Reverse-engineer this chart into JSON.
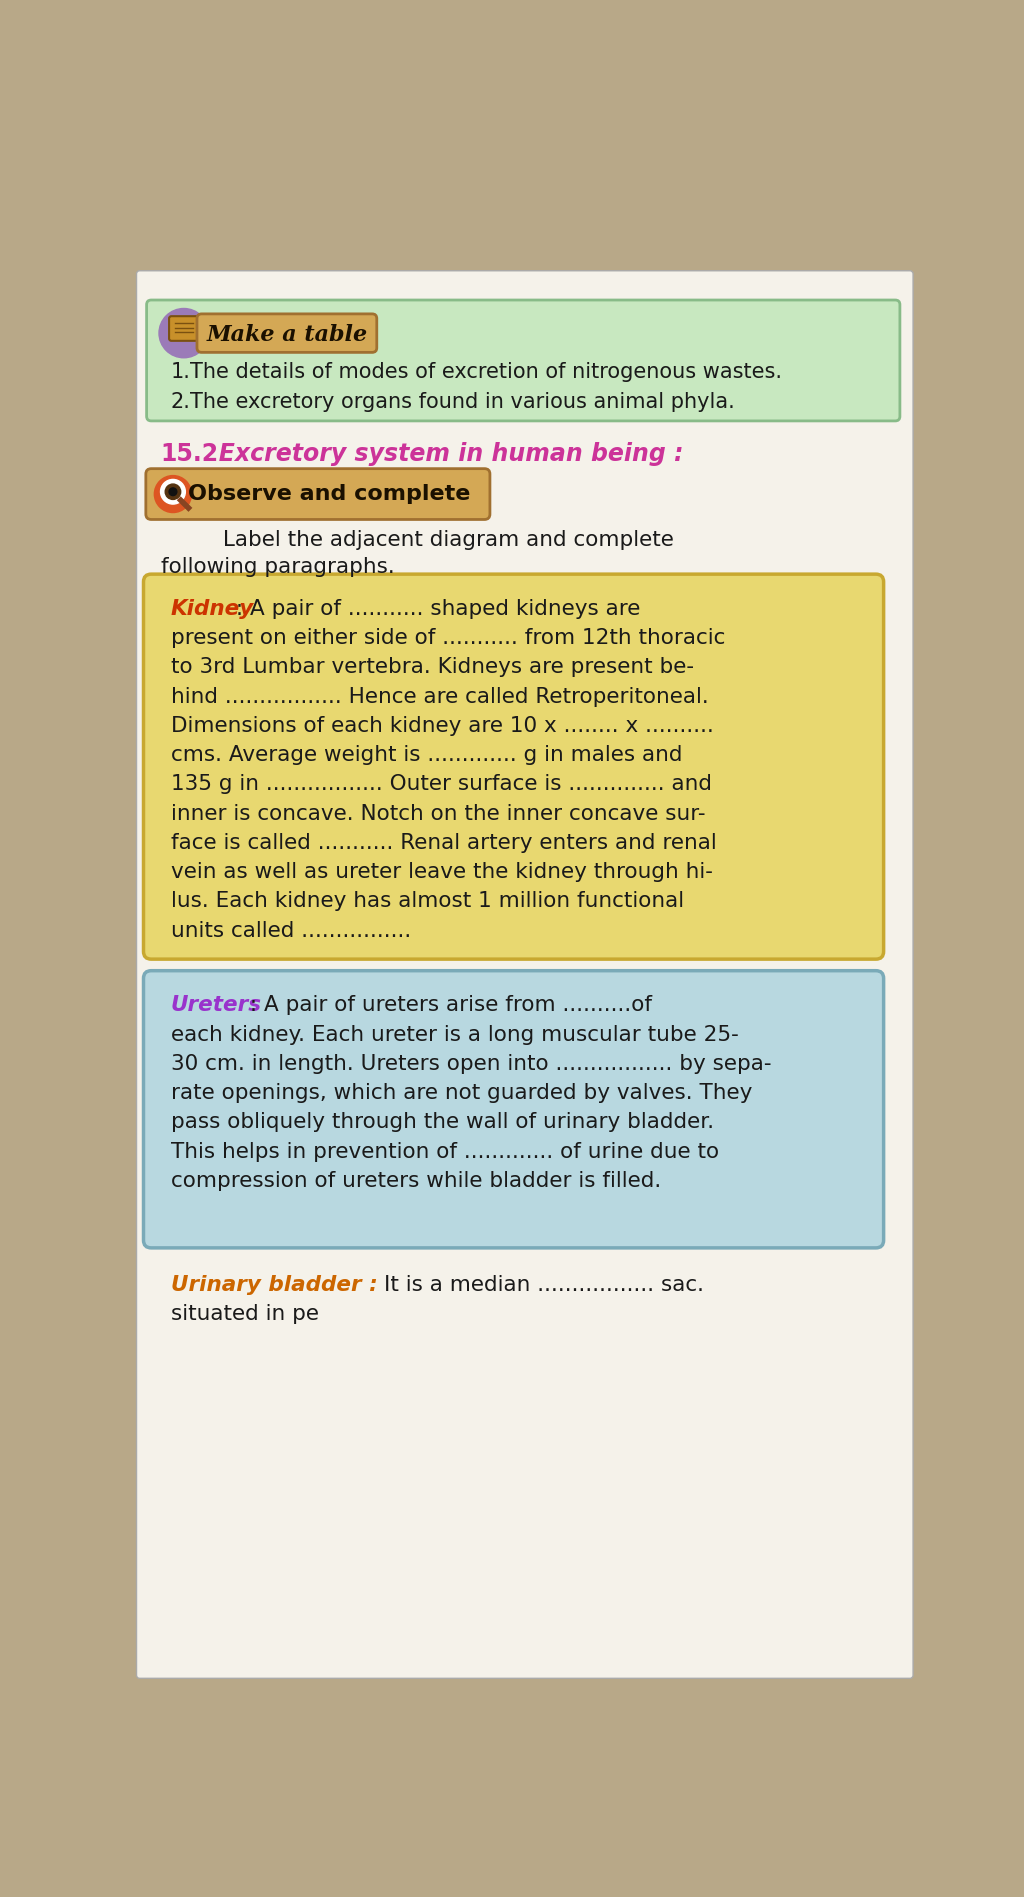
{
  "page_bg": "#f5f2ea",
  "outer_bg": "#c8b89a",
  "make_table_label_text": "Make a table",
  "make_table_box_bg": "#c8e8c0",
  "make_table_box_border": "#88bb88",
  "pill_bg": "#d4a855",
  "pill_border": "#a07030",
  "section_num": "15.2",
  "section_title": "   Excretory system in human being :",
  "section_title_color": "#cc3399",
  "observe_text": "Observe and complete",
  "intro_line1": "         Label the adjacent diagram and complete",
  "intro_line2": "following paragraphs.",
  "kidney_box_bg": "#e8d870",
  "kidney_box_border": "#c8a830",
  "kidney_label": "Kidney",
  "kidney_label_color": "#cc3300",
  "kidney_lines": [
    " : A pair of ........... shaped kidneys are",
    "present on either side of ........... from 12th thoracic",
    "to 3rd Lumbar vertebra. Kidneys are present be-",
    "hind ................. Hence are called Retroperitoneal.",
    "Dimensions of each kidney are 10 x ........ x ..........",
    "cms. Average weight is ............. g in males and",
    "135 g in ................. Outer surface is .............. and",
    "inner is concave. Notch on the inner concave sur-",
    "face is called ........... Renal artery enters and renal",
    "vein as well as ureter leave the kidney through hi-",
    "lus. Each kidney has almost 1 million functional",
    "units called ................"
  ],
  "ureters_box_bg": "#b8d8e0",
  "ureters_box_border": "#7aaab8",
  "ureters_label": "Ureters",
  "ureters_label_color": "#9933cc",
  "ureters_lines": [
    " : A pair of ureters arise from ..........of",
    "each kidney. Each ureter is a long muscular tube 25-",
    "30 cm. in length. Ureters open into ................. by sepa-",
    "rate openings, which are not guarded by valves. They",
    "pass obliquely through the wall of urinary bladder.",
    "This helps in prevention of ............. of urine due to",
    "compression of ureters while bladder is filled."
  ],
  "urinary_label": "Urinary bladder",
  "urinary_label_color": "#cc6600",
  "urinary_line": " : It is a median ................. sac.",
  "urinary_line2": "situated in pe",
  "list_items": [
    "The details of modes of excretion of nitrogenous wastes.",
    "The excretory organs found in various animal phyla."
  ]
}
